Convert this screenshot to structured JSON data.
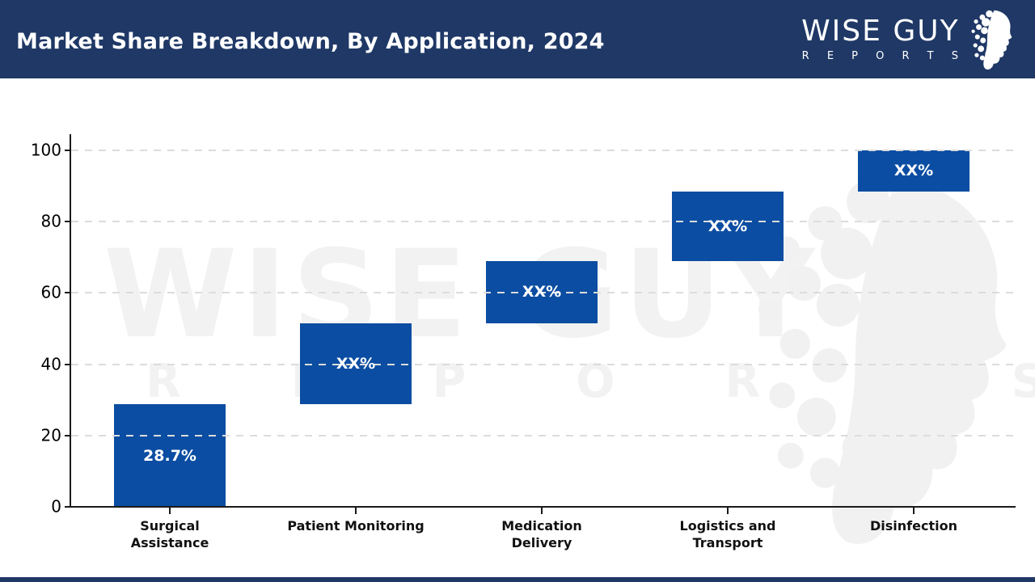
{
  "header": {
    "title": "Market Share Breakdown, By Application, 2024"
  },
  "brand": {
    "name": "WISE GUY",
    "sub": "R E P O R T S",
    "logo_icon": "dotted-head-profile-icon"
  },
  "watermark": {
    "line1": "WISE GUY",
    "line2": "R E P O R T S",
    "head_icon": "dotted-head-profile-icon"
  },
  "colors": {
    "header_navy": "#1f3866",
    "bar_blue": "#0b4da2",
    "gridline": "#dcdcdc",
    "axis": "#1a1a1a",
    "watermark_gray": "#f2f2f2",
    "bar_label": "#ffffff"
  },
  "chart_data": {
    "type": "bar",
    "subtype": "waterfall",
    "title": "Market Share Breakdown, By Application, 2024",
    "categories": [
      "Surgical\nAssistance",
      "Patient Monitoring",
      "Medication\nDelivery",
      "Logistics and\nTransport",
      "Disinfection"
    ],
    "segments": [
      {
        "category": "Surgical Assistance",
        "start": 0,
        "end": 28.7,
        "label": "28.7%"
      },
      {
        "category": "Patient Monitoring",
        "start": 28.7,
        "end": 51.5,
        "label": "XX%"
      },
      {
        "category": "Medication Delivery",
        "start": 51.5,
        "end": 69.0,
        "label": "XX%"
      },
      {
        "category": "Logistics and Transport",
        "start": 69.0,
        "end": 88.5,
        "label": "XX%"
      },
      {
        "category": "Disinfection",
        "start": 88.5,
        "end": 100.0,
        "label": "XX%"
      }
    ],
    "yticks": [
      0,
      20,
      40,
      60,
      80,
      100
    ],
    "ylim": [
      0,
      105
    ],
    "xlabel": "",
    "ylabel": "",
    "grid": "dashed horizontal, drawn over bars",
    "legend": "none",
    "bar_color": "#0b4da2",
    "label_color": "#ffffff"
  }
}
